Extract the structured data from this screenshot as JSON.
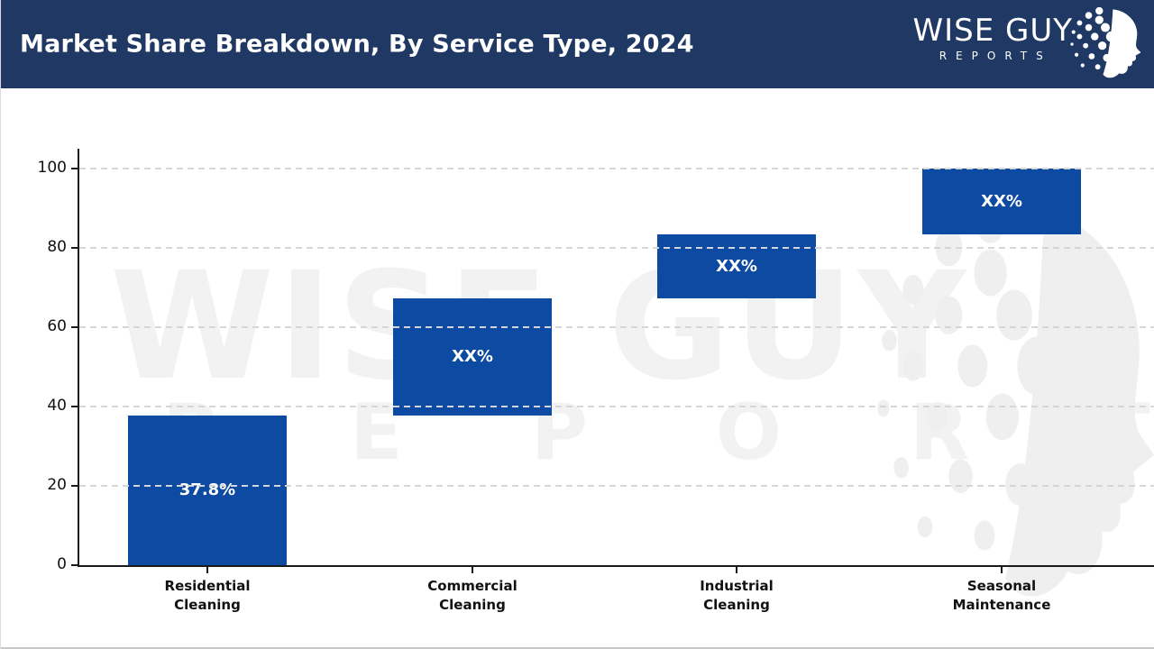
{
  "header": {
    "title": "Market Share Breakdown, By Service Type, 2024",
    "bg_color": "#1f3864",
    "title_color": "#ffffff",
    "logo": {
      "line1": "WISE GUY",
      "line2": "REPORTS",
      "icon": "dot-face-logo"
    }
  },
  "watermark": {
    "line1": "WISE GUY",
    "line2": "R E P O R T S",
    "icon": "dot-face-watermark",
    "color": "#f2f2f2"
  },
  "chart_data": {
    "type": "bar",
    "subtype": "waterfall",
    "title": "Market Share Breakdown, By Service Type, 2024",
    "xlabel": "",
    "ylabel": "",
    "ylim": [
      0,
      105
    ],
    "yticks": [
      0,
      20,
      40,
      60,
      80,
      100
    ],
    "grid": "horizontal-dashed",
    "legend": "none",
    "bar_color": "#0d4aa2",
    "bar_label_color": "#ffffff",
    "categories": [
      "Residential\nCleaning",
      "Commercial\nCleaning",
      "Industrial\nCleaning",
      "Seasonal\nMaintenance"
    ],
    "segments": [
      {
        "category": "Residential Cleaning",
        "start": 0,
        "end": 37.8,
        "value": 37.8,
        "label": "37.8%"
      },
      {
        "category": "Commercial Cleaning",
        "start": 37.8,
        "end": 67.2,
        "value": 29.4,
        "label": "XX%"
      },
      {
        "category": "Industrial Cleaning",
        "start": 67.2,
        "end": 83.4,
        "value": 16.2,
        "label": "XX%"
      },
      {
        "category": "Seasonal Maintenance",
        "start": 83.4,
        "end": 100,
        "value": 16.6,
        "label": "XX%"
      }
    ]
  }
}
